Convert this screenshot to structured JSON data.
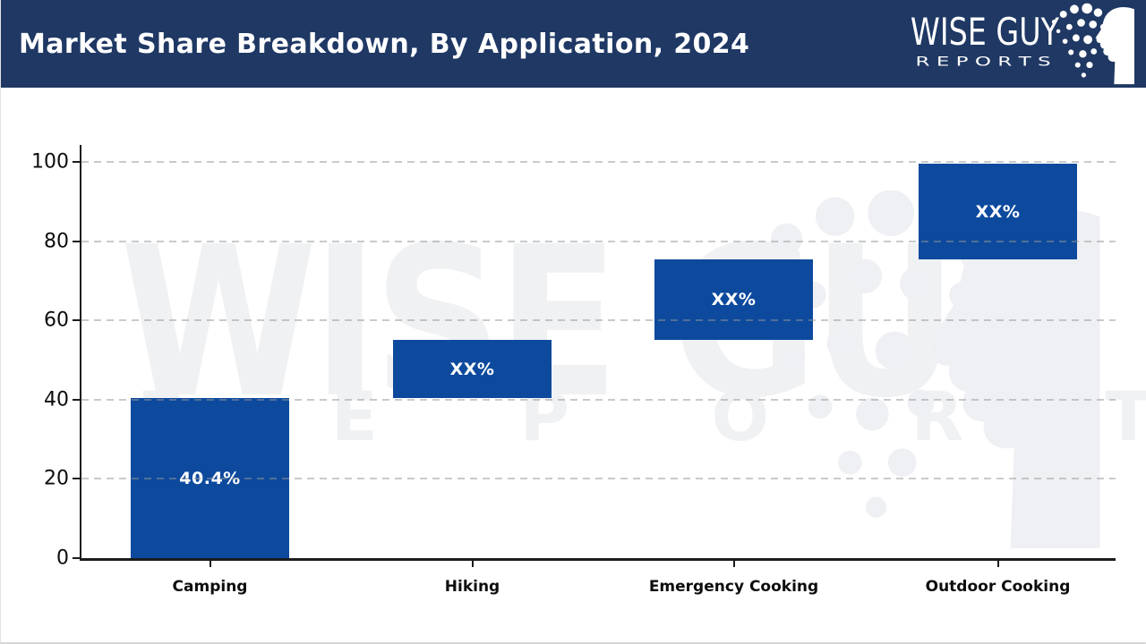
{
  "header": {
    "title": "Market Share Breakdown, By Application, 2024",
    "bg_color": "#1f3864",
    "logo": {
      "line1": "WISE GUY",
      "line2": "R E P O R T S"
    }
  },
  "watermark": {
    "line1": "WISE GUY",
    "line2": "R E P O R T S"
  },
  "chart_data": {
    "type": "bar",
    "subtype": "waterfall",
    "title": "Market Share Breakdown, By Application, 2024",
    "xlabel": "",
    "ylabel": "",
    "categories": [
      "Camping",
      "Hiking",
      "Emergency Cooking",
      "Outdoor Cooking"
    ],
    "segments": [
      {
        "label": "Camping",
        "start": 0,
        "end": 40.4,
        "value_label": "40.4%"
      },
      {
        "label": "Hiking",
        "start": 40.4,
        "end": 55.1,
        "value_label": "XX%"
      },
      {
        "label": "Emergency Cooking",
        "start": 55.1,
        "end": 75.4,
        "value_label": "XX%"
      },
      {
        "label": "Outdoor Cooking",
        "start": 75.4,
        "end": 99.5,
        "value_label": "XX%"
      }
    ],
    "yticks": [
      0,
      20,
      40,
      60,
      80,
      100
    ],
    "ylim": [
      0,
      105
    ],
    "grid": "dashed horizontal, drawn above bars",
    "legend": "none",
    "bar_color": "#0d4a9e",
    "bar_label_color": "#ffffff",
    "axis_color": "#1c1c1c",
    "header_color": "#1f3864",
    "watermark_color": "#f0f1f3"
  }
}
